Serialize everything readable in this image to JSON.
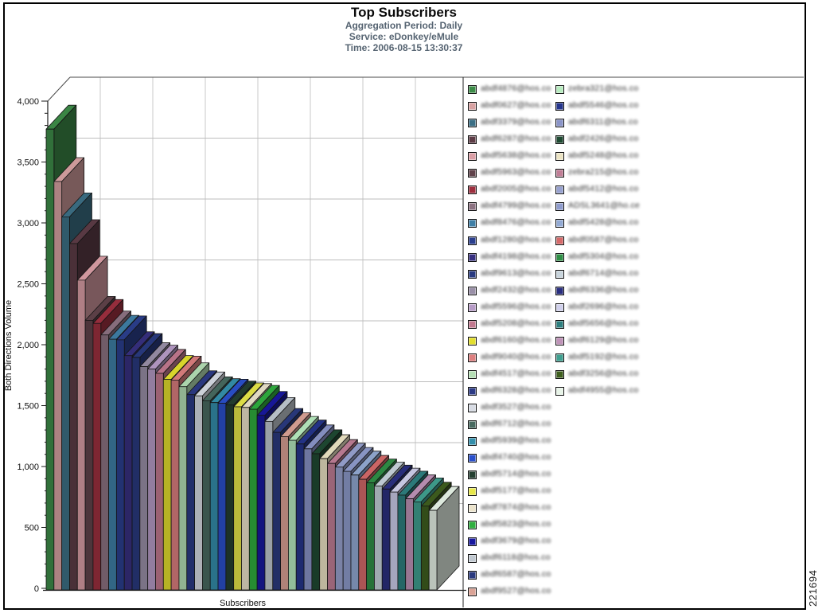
{
  "page": {
    "figure_number": "221694",
    "frame_border_color": "#000000",
    "background": "#ffffff"
  },
  "header": {
    "title": "Top Subscribers",
    "subtitle_lines": [
      "Aggregation Period: Daily",
      "Service: eDonkey/eMule",
      "Time: 2006-08-15 13:30:37"
    ],
    "subtitle_color": "#566472"
  },
  "chart_data": {
    "type": "bar",
    "projection": "3d",
    "title": "Top Subscribers",
    "xlabel": "Subscribers",
    "ylabel": "Both Directions Volume",
    "ylim": [
      0,
      4000
    ],
    "grid": true,
    "legend_position": "right",
    "labels_redacted": true,
    "yticks": [
      {
        "value": 0,
        "label": "0"
      },
      {
        "value": 500,
        "label": "500"
      },
      {
        "value": 1000,
        "label": "1,000"
      },
      {
        "value": 1500,
        "label": "1,500"
      },
      {
        "value": 2000,
        "label": "2,000"
      },
      {
        "value": 2500,
        "label": "2,500"
      },
      {
        "value": 3000,
        "label": "3,000"
      },
      {
        "value": 3500,
        "label": "3,500"
      },
      {
        "value": 4000,
        "label": "4,000"
      }
    ],
    "ytick_minor_step": 100,
    "categories": [
      "abdf4876@hos.co",
      "abdf0627@hos.co",
      "abdf3379@hos.co",
      "abdf6287@hos.co",
      "abdf5638@hos.co",
      "abdf5963@hos.co",
      "abdf2005@hos.co",
      "abdf4799@hos.co",
      "abdf8476@hos.co",
      "abdf1280@hos.co",
      "abdf4198@hos.co",
      "abdf9613@hos.co",
      "abdf2432@hos.co",
      "abdf5596@hos.co",
      "abdf5208@hos.co",
      "abdf6160@hos.co",
      "abdf9040@hos.co",
      "abdf4517@hos.co",
      "abdf6328@hos.co",
      "abdf3527@hos.co",
      "abdf6712@hos.co",
      "abdf5939@hos.co",
      "abdf4740@hos.co",
      "abdf5714@hos.co",
      "abdf5177@hos.co",
      "abdf7874@hos.co",
      "abdf5823@hos.co",
      "abdf3679@hos.co",
      "abdf6118@hos.co",
      "abdf6587@hos.co",
      "abdf9527@hos.co",
      "zebra321@hos.co",
      "abdf5546@hos.co",
      "abdf6311@hos.co",
      "abdf2426@hos.co",
      "abdf5248@hos.co",
      "zebra215@hos.co",
      "abdf5412@hos.co",
      "ADSL3641@ho.ce",
      "abdf5428@hos.co",
      "abdf0587@hos.co",
      "abdf5304@hos.co",
      "abdf6714@hos.co",
      "abdf6336@hos.co",
      "abdf2696@hos.co",
      "abdf5656@hos.co",
      "abdf6129@hos.co",
      "abdf5192@hos.co",
      "abdf3256@hos.co",
      "abdf4955@hos.co"
    ],
    "series": [
      {
        "name": "Both Directions Volume",
        "values": [
          3770,
          3340,
          3050,
          2830,
          2530,
          2200,
          2175,
          2080,
          2045,
          2040,
          1910,
          1895,
          1820,
          1800,
          1765,
          1715,
          1710,
          1655,
          1590,
          1580,
          1540,
          1525,
          1520,
          1505,
          1490,
          1485,
          1470,
          1420,
          1370,
          1280,
          1245,
          1215,
          1185,
          1145,
          1105,
          1065,
          1025,
          995,
          960,
          930,
          895,
          865,
          840,
          815,
          790,
          765,
          735,
          710,
          675,
          640
        ]
      }
    ],
    "colors": [
      "#3d8c48",
      "#d8a2a2",
      "#3c7086",
      "#5d3c46",
      "#db9fa6",
      "#60424a",
      "#9e2f3f",
      "#8d7382",
      "#3f7fa6",
      "#2b3f8e",
      "#373080",
      "#293a80",
      "#9a90a8",
      "#b79cc7",
      "#c2798f",
      "#e3df2e",
      "#dd7f7f",
      "#b5dfb5",
      "#2c3a85",
      "#d8dce4",
      "#486a60",
      "#3590ac",
      "#2a50cc",
      "#243f30",
      "#e8e84a",
      "#ece4cc",
      "#2faf3f",
      "#18189f",
      "#c0c8d0",
      "#2a3a7f",
      "#dba396",
      "#b8ecc0",
      "#25358c",
      "#8a94c8",
      "#1f4a32",
      "#ece4c4",
      "#c07e96",
      "#98a2d0",
      "#8f9ccd",
      "#93aad4",
      "#d66a6a",
      "#2f8f46",
      "#c8d4dc",
      "#2a2f80",
      "#d0d0ec",
      "#2e7f7f",
      "#bf93b8",
      "#40a090",
      "#3f5f1f",
      "#e8f4e8"
    ]
  },
  "legend": {
    "left_column_entries": 19,
    "bottom_single_column_entries": 12,
    "right_column_entries": 19
  }
}
